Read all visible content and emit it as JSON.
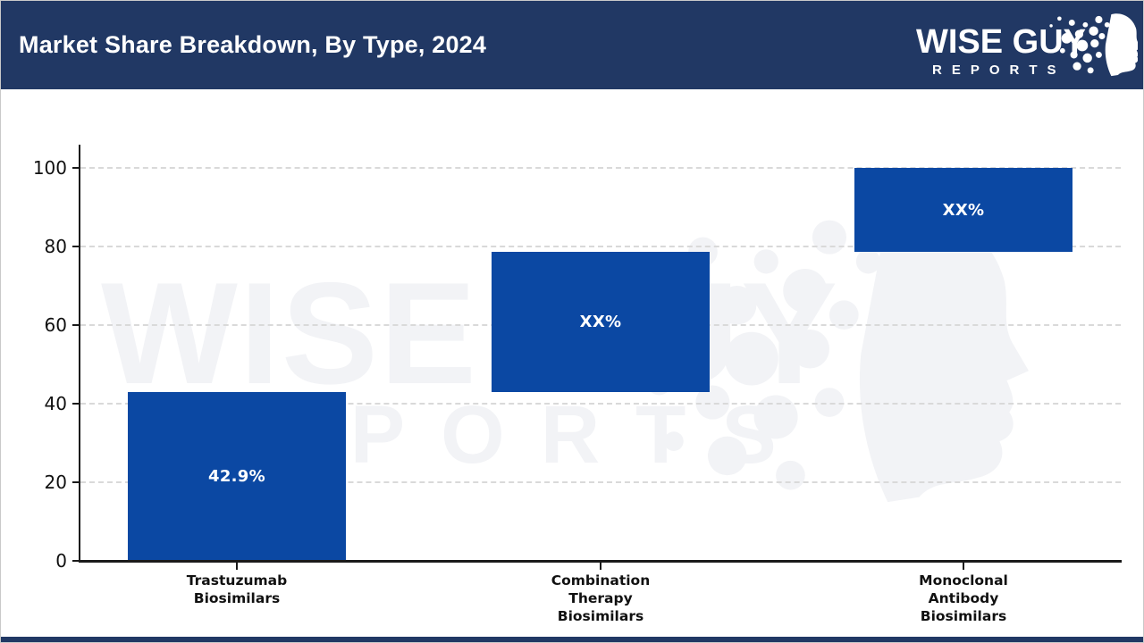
{
  "header": {
    "title": "Market Share Breakdown, By Type, 2024",
    "bg_color": "#213864",
    "logo": {
      "line1": "WISE GUY",
      "line2": "REPORTS"
    }
  },
  "watermark": {
    "line1": "WISE GUY",
    "line2": "REPORTS"
  },
  "footer": {
    "bar_color": "#213864"
  },
  "chart_data": {
    "type": "bar",
    "subtype": "waterfall",
    "title": "Market Share Breakdown, By Type, 2024",
    "categories": [
      [
        "Trastuzumab",
        "Biosimilars"
      ],
      [
        "Combination",
        "Therapy",
        "Biosimilars"
      ],
      [
        "Monoclonal",
        "Antibody",
        "Biosimilars"
      ]
    ],
    "series": [
      {
        "name": "Market Share %",
        "segments": [
          {
            "category": "Trastuzumab Biosimilars",
            "start": 0,
            "end": 42.9,
            "label": "42.9%"
          },
          {
            "category": "Combination Therapy Biosimilars",
            "start": 42.9,
            "end": 78.6,
            "label": "XX%"
          },
          {
            "category": "Monoclonal Antibody Biosimilars",
            "start": 78.6,
            "end": 100,
            "label": "XX%"
          }
        ]
      }
    ],
    "bar_color": "#0b48a3",
    "xlabel": "",
    "ylabel": "",
    "ylim": [
      0,
      106
    ],
    "yticks": [
      0,
      20,
      40,
      60,
      80,
      100
    ],
    "grid": "horizontal-dashed",
    "grid_color": "#d9d9d9",
    "legend": "none"
  }
}
